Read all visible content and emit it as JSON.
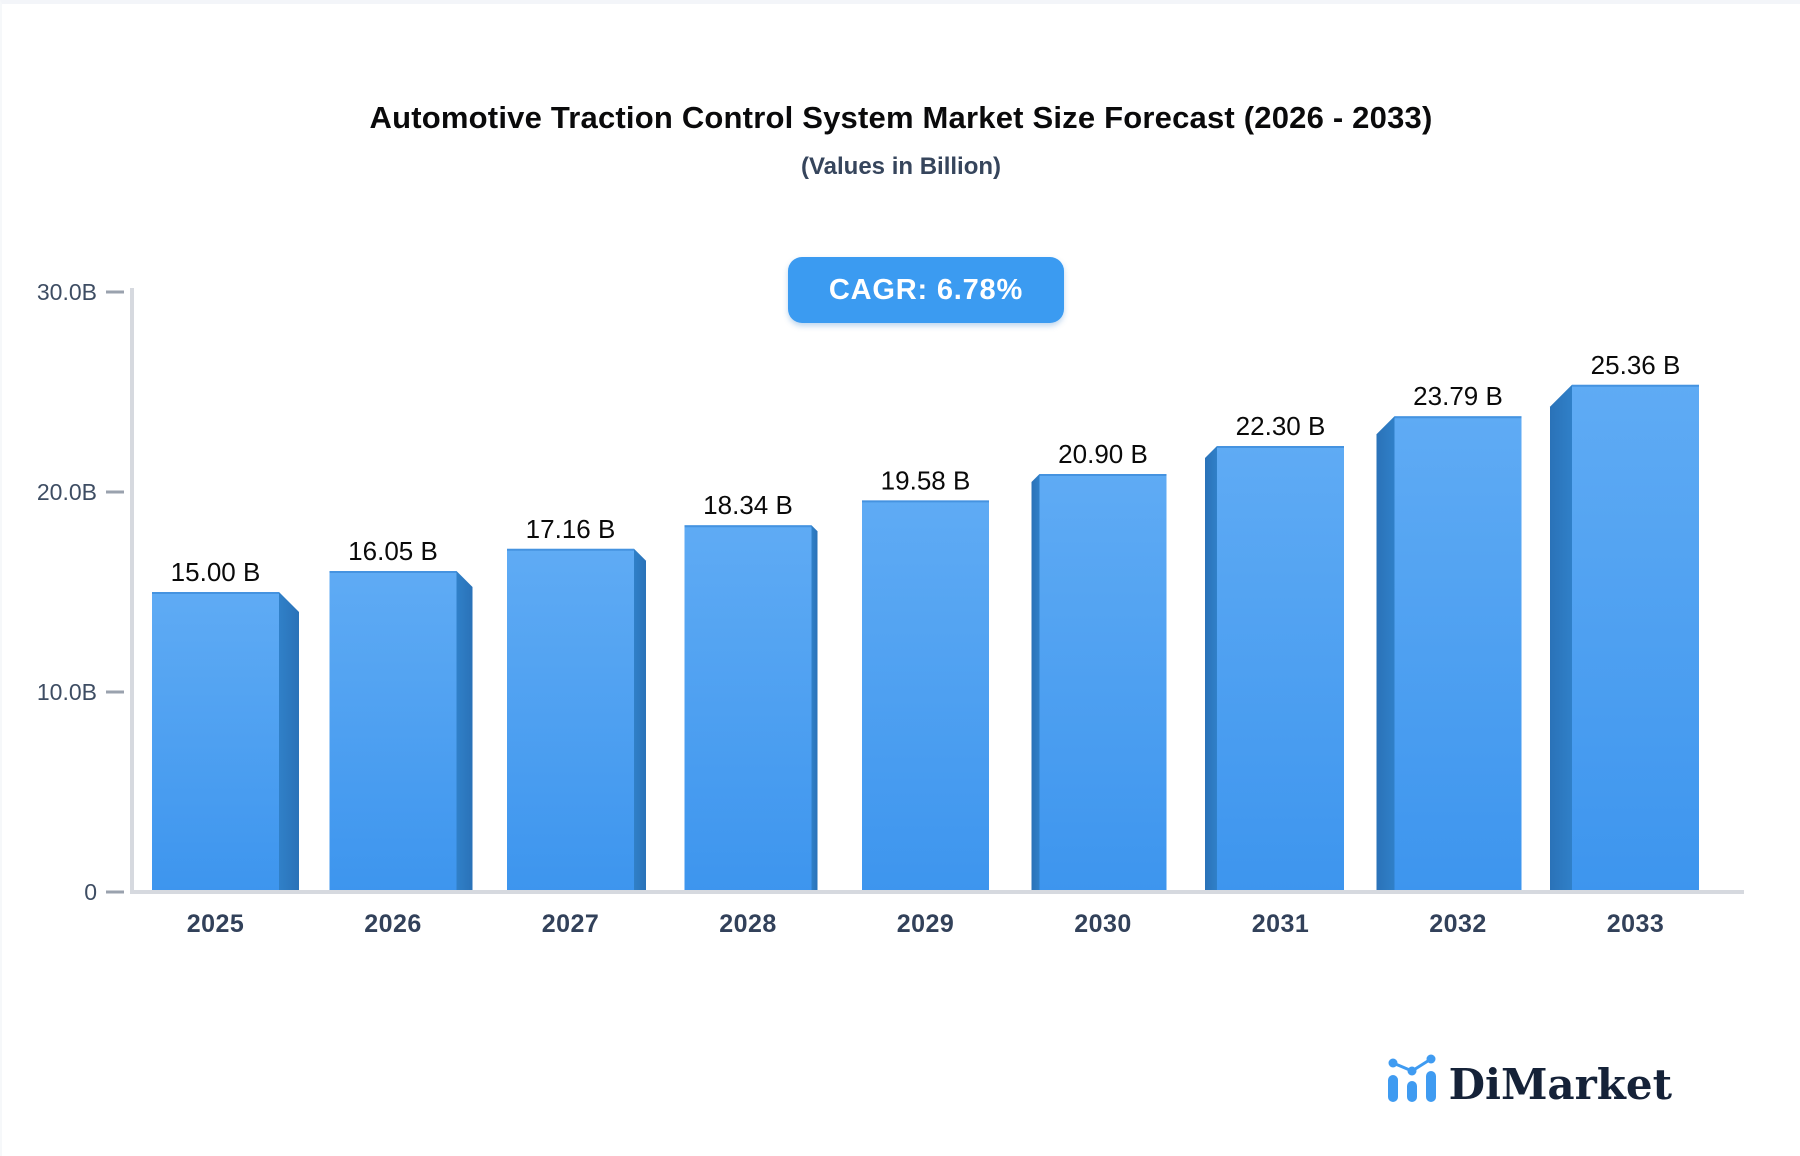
{
  "page": {
    "title": "Automotive Traction Control System Market Size Forecast (2026 - 2033)",
    "subtitle": "(Values in Billion)",
    "cagr_label": "CAGR: 6.78%",
    "brand": {
      "name": "DiMarket",
      "icon": "mini-bar-chart-logo-icon"
    }
  },
  "chart_data": {
    "type": "bar",
    "style": "pseudo-3d-center-perspective",
    "title": "Automotive Traction Control System Market Size Forecast (2026 - 2033)",
    "subtitle": "(Values in Billion)",
    "annotation": "CAGR: 6.78%",
    "categories": [
      "2025",
      "2026",
      "2027",
      "2028",
      "2029",
      "2030",
      "2031",
      "2032",
      "2033"
    ],
    "values": [
      15.0,
      16.05,
      17.16,
      18.34,
      19.58,
      20.9,
      22.3,
      23.79,
      25.36
    ],
    "value_labels": [
      "15.00 B",
      "16.05 B",
      "17.16 B",
      "18.34 B",
      "19.58 B",
      "20.90 B",
      "22.30 B",
      "23.79 B",
      "25.36 B"
    ],
    "xlabel": "",
    "ylabel": "",
    "ylim": [
      0,
      30
    ],
    "yticks": [
      {
        "v": 0,
        "label": "0"
      },
      {
        "v": 10,
        "label": "10.0B"
      },
      {
        "v": 20,
        "label": "20.0B"
      },
      {
        "v": 30,
        "label": "30.0B"
      }
    ],
    "grid": false,
    "legend": false,
    "colors": {
      "bar_face_top": "#5fabf4",
      "bar_face_bottom": "#3d95ee",
      "bar_top_edge": "#2f7fd0",
      "bar_side_light": "#3080c8",
      "bar_side_dark": "#2a72b8",
      "axis_line": "#d6d9df",
      "tick_mark": "#9aa2ae",
      "badge_bg": "#3b9bf1",
      "logo_blue": "#3f9bf1"
    }
  }
}
